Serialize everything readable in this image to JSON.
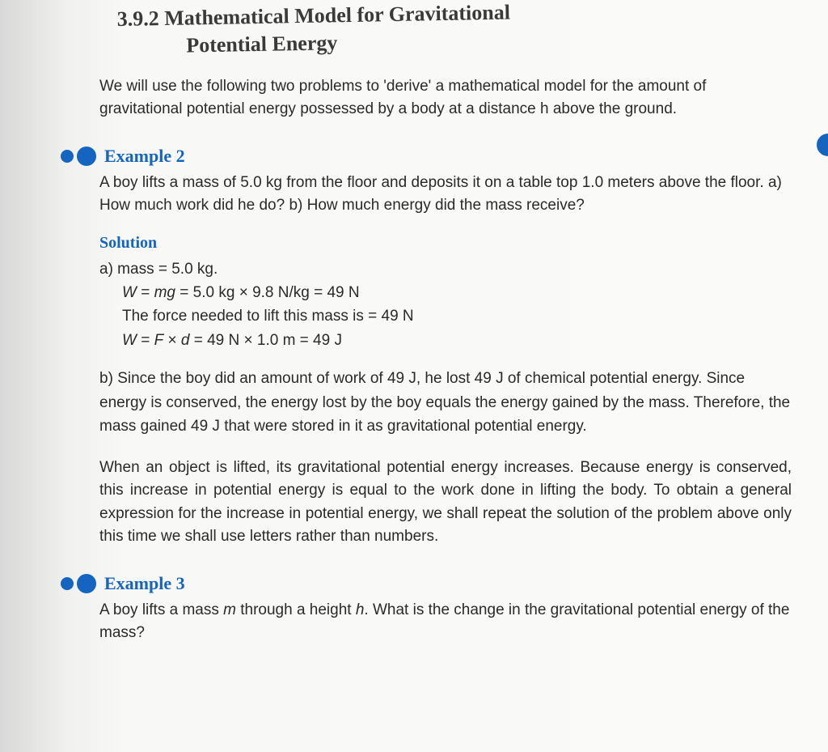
{
  "heading": {
    "number": "3.9.2",
    "line1": "Mathematical Model for Gravitational",
    "line2": "Potential Energy"
  },
  "intro": "We will use the following two problems to 'derive' a mathematical model for the amount of gravitational potential energy possessed by a body at a distance h above the ground.",
  "example2": {
    "title": "Example 2",
    "problem": "A boy lifts a mass of 5.0 kg from the floor and deposits it on a table top 1.0 meters above the floor. a) How much work did he do? b) How much energy did the mass receive?",
    "solution_label": "Solution",
    "part_a": {
      "label": "a) mass = 5.0 kg.",
      "line1": "W = mg = 5.0 kg × 9.8 N/kg = 49 N",
      "line2": "The force needed to lift this mass is = 49 N",
      "line3": "W = F × d = 49 N × 1.0 m = 49 J"
    },
    "part_b": {
      "label": "b)",
      "text": "Since the boy did an amount of work of 49 J, he lost 49 J of chemical potential energy. Since energy is conserved, the energy lost by the boy equals the energy gained by the mass. Therefore, the mass gained 49 J that were stored in it as gravitational potential energy."
    }
  },
  "transition": "When an object is lifted, its gravitational potential energy increases. Because energy is conserved, this increase in potential energy is equal to the work done in lifting the body. To obtain a general expression for the increase in potential energy, we shall repeat the solution of the problem above only this time we shall use letters rather than numbers.",
  "example3": {
    "title": "Example 3",
    "problem_part1": "A boy lifts a mass ",
    "problem_var1": "m",
    "problem_part2": " through a height ",
    "problem_var2": "h",
    "problem_part3": ". What is the change in the gravitational potential energy of the mass?"
  },
  "colors": {
    "accent": "#1565c0",
    "text": "#2a2a2a",
    "heading": "#3a3a3a"
  }
}
